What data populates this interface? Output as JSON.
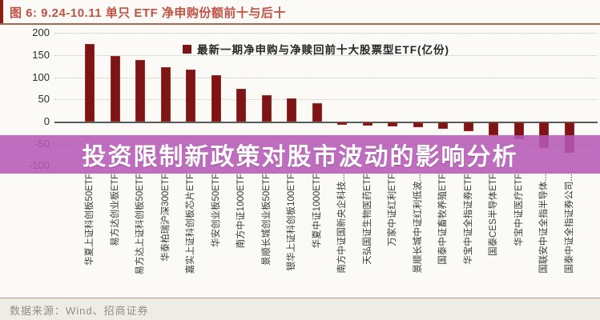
{
  "title": "图 6: 9.24-10.11 单只 ETF 净申购份额前十与后十",
  "legend": {
    "label": "最新一期净申购与净赎回前十大股票型ETF(亿份)",
    "marker_color": "#7d1517"
  },
  "banner": {
    "text": "投资限制新政策对股市波动的影响分析",
    "color": "#b558b7",
    "text_color": "#ffffff"
  },
  "footer": {
    "source": "数据来源：Wind、招商证券"
  },
  "colors": {
    "bar": "#7d1517",
    "title": "#bf5244",
    "background": "#fbfaf6"
  },
  "chart_data": {
    "type": "bar",
    "title": "最新一期净申购与净赎回前十大股票型ETF(亿份)",
    "categories": [
      "华夏上证科创板50ETF",
      "易方达创业板ETF",
      "易方达上证科创板50ETF",
      "华泰柏瑞沪深300ETF",
      "嘉实上证科创板芯片ETF",
      "华安创业板50ETF",
      "南方中证1000ETF",
      "景顺长城创业板50ETF",
      "银华上证科创板100ETF",
      "华夏中证1000ETF",
      "南方中证国新央企科技...",
      "天弘国证生物医药ETF",
      "万家中证红利ETF",
      "景顺长城中证红利低波...",
      "国泰中证畜牧养殖ETF",
      "华宝中证全指证券ETF",
      "国泰CES半导体ETF",
      "华宝中证医疗ETF",
      "国联安中证全指半导体...",
      "国泰中证全指证券公司..."
    ],
    "values": [
      175,
      147,
      138,
      123,
      118,
      105,
      74,
      60,
      52,
      42,
      -6,
      -8,
      -9,
      -10,
      -15,
      -20,
      -28,
      -38,
      -58,
      -68
    ],
    "ylabel": "亿份",
    "ylim": [
      -100,
      200
    ],
    "yticks": [
      200,
      150,
      100,
      50,
      0,
      -50,
      -100
    ],
    "grid": "dotted-horizontal",
    "legend_position": "top-center",
    "bar_color": "#7d1517"
  }
}
